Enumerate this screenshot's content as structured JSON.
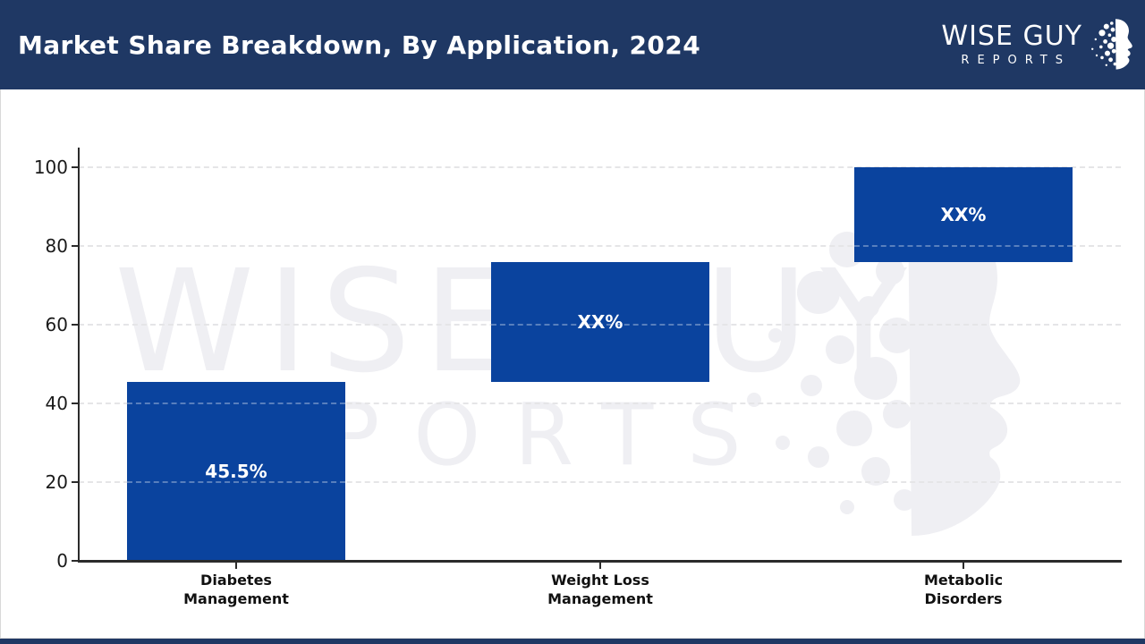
{
  "header": {
    "title": "Market Share Breakdown, By Application, 2024",
    "logo": {
      "line1": "WISE GUY",
      "line2": "REPORTS"
    }
  },
  "watermark": {
    "line1": "WISE GUY",
    "line2": "REPORTS"
  },
  "chart_data": {
    "type": "bar",
    "subtype": "waterfall-breakdown",
    "title": "Market Share Breakdown, By Application, 2024",
    "categories": [
      "Diabetes Management",
      "Weight Loss Management",
      "Metabolic Disorders"
    ],
    "categories_lines": [
      [
        "Diabetes",
        "Management"
      ],
      [
        "Weight Loss",
        "Management"
      ],
      [
        "Metabolic",
        "Disorders"
      ]
    ],
    "bars": [
      {
        "category": "Diabetes Management",
        "label": "45.5%",
        "start": 0,
        "end": 45.5
      },
      {
        "category": "Weight Loss Management",
        "label": "XX%",
        "start": 45.5,
        "end": 76
      },
      {
        "category": "Metabolic Disorders",
        "label": "XX%",
        "start": 76,
        "end": 100
      }
    ],
    "xlabel": "",
    "ylabel": "",
    "ylim": [
      0,
      105
    ],
    "yticks": [
      100,
      80,
      60,
      40,
      20,
      0
    ],
    "ytick_labels": [
      "100",
      "80",
      "60",
      "40",
      "20",
      "0"
    ],
    "grid": "horizontal-dashed",
    "legend": "none",
    "bar_color": "#0a439e"
  },
  "colors": {
    "header_bg": "#1f3864",
    "footer_bg": "#1f3864",
    "bar": "#0a439e",
    "bar_label": "#ffffff",
    "grid": "#e5e5e7",
    "axis": "#2b2b2b",
    "tick_text": "#1a1a1a",
    "category_text": "#111111",
    "watermark": "#efeff3",
    "background": "#ffffff"
  }
}
